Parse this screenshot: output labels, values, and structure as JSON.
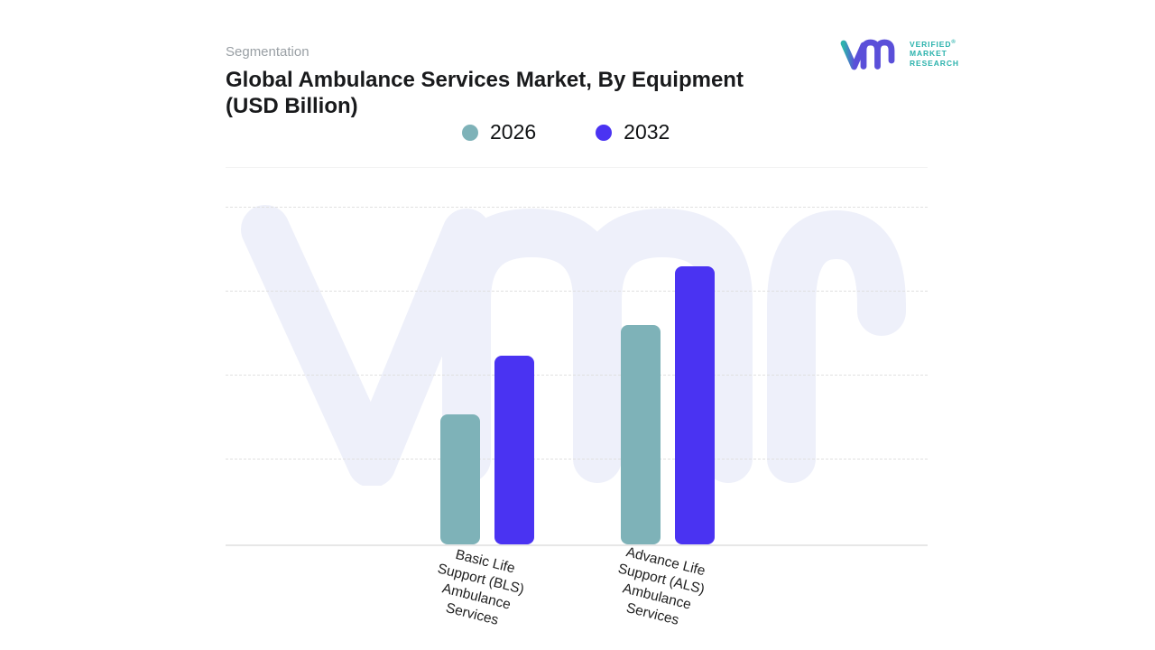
{
  "header": {
    "eyebrow": "Segmentation",
    "title": "Global Ambulance Services Market, By Equipment (USD Billion)"
  },
  "logo": {
    "line1": "VERIFIED",
    "line2": "MARKET",
    "line3": "RESEARCH",
    "registered": "®",
    "teal": "#2AB2AC",
    "purple": "#5A4FD9"
  },
  "chart_data": {
    "type": "bar",
    "title": "Global Ambulance Services Market, By Equipment (USD Billion)",
    "categories": [
      "Basic Life Support (BLS) Ambulance Services",
      "Advance Life Support (ALS) Ambulance Services"
    ],
    "series": [
      {
        "name": "2026",
        "color": "#7EB2B8",
        "values": [
          14.5,
          24.5
        ]
      },
      {
        "name": "2032",
        "color": "#4A33F2",
        "values": [
          21,
          31
        ]
      }
    ],
    "ylim": [
      0,
      42
    ],
    "xlabel": "",
    "ylabel": "",
    "grid": "horizontal-dashed",
    "legend_position": "top-center",
    "watermark_text": "Vmr",
    "colors": {
      "watermark": "#EEF0FA",
      "gridline": "#E0E0E0",
      "baseline": "#E7E7E7",
      "topline": "#F3F3F3",
      "label": "#1F1F1F"
    }
  }
}
